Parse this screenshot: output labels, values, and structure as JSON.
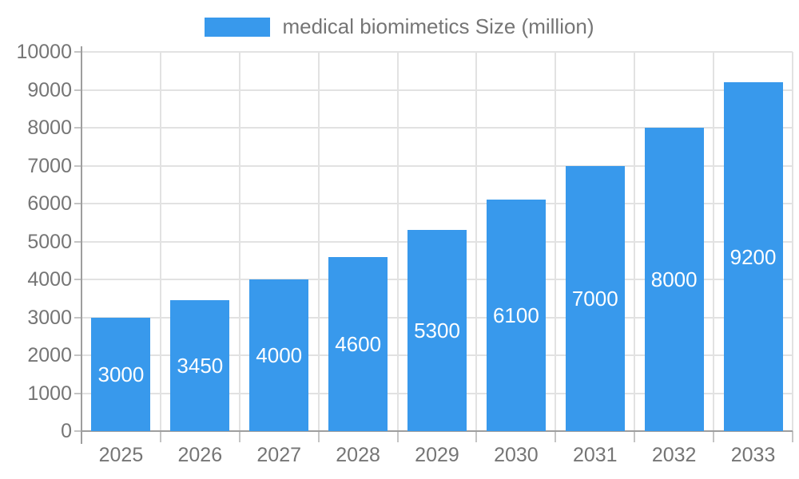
{
  "legend": {
    "label": "medical biomimetics Size (million)"
  },
  "colors": {
    "bar": "#3899ec",
    "grid": "#e2e2e2",
    "axis": "#9e9e9e",
    "tick": "#c4c4c4",
    "text": "#757575",
    "bar_label": "#ffffff",
    "background": "#ffffff"
  },
  "chart_data": {
    "type": "bar",
    "title": "",
    "categories": [
      "2025",
      "2026",
      "2027",
      "2028",
      "2029",
      "2030",
      "2031",
      "2032",
      "2033"
    ],
    "series": [
      {
        "name": "medical biomimetics Size (million)",
        "values": [
          3000,
          3450,
          4000,
          4600,
          5300,
          6100,
          7000,
          8000,
          9200
        ]
      }
    ],
    "xlabel": "",
    "ylabel": "",
    "ylim": [
      0,
      10000
    ],
    "yticks": [
      0,
      1000,
      2000,
      3000,
      4000,
      5000,
      6000,
      7000,
      8000,
      9000,
      10000
    ],
    "grid": "on",
    "legend_position": "top",
    "value_labels": "inside-middle"
  }
}
